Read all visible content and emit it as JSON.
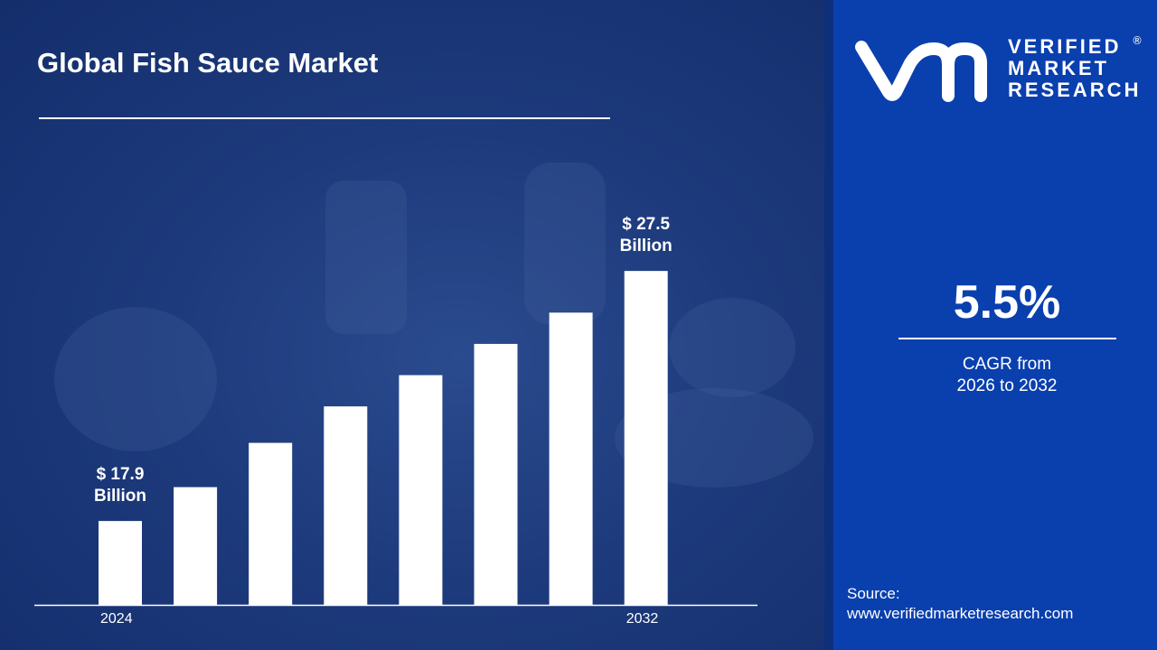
{
  "title": "Global Fish Sauce Market",
  "brand": {
    "line1": "VERIFIED",
    "line2": "MARKET",
    "line3": "RESEARCH",
    "registered": "®"
  },
  "cagr": {
    "value": "5.5%",
    "label_line1": "CAGR from",
    "label_line2": "2026 to 2032"
  },
  "source": {
    "label": "Source:",
    "url": "www.verifiedmarketresearch.com"
  },
  "colors": {
    "bar": "#ffffff",
    "panel": "#0a3fae",
    "background": "#1d3a7c"
  },
  "chart_data": {
    "type": "bar",
    "categories": [
      "2024",
      "",
      "",
      "",
      "",
      "",
      "",
      "2032"
    ],
    "values": [
      17.9,
      19.2,
      20.9,
      22.3,
      23.5,
      24.7,
      25.9,
      27.5
    ],
    "data_labels": [
      {
        "index": 0,
        "line1": "$ 17.9",
        "line2": "Billion"
      },
      {
        "index": 7,
        "line1": "$ 27.5",
        "line2": "Billion"
      }
    ],
    "unit": "Billion USD",
    "title": "Global Fish Sauce Market",
    "xlabel": "",
    "ylabel": "",
    "grid": false
  }
}
